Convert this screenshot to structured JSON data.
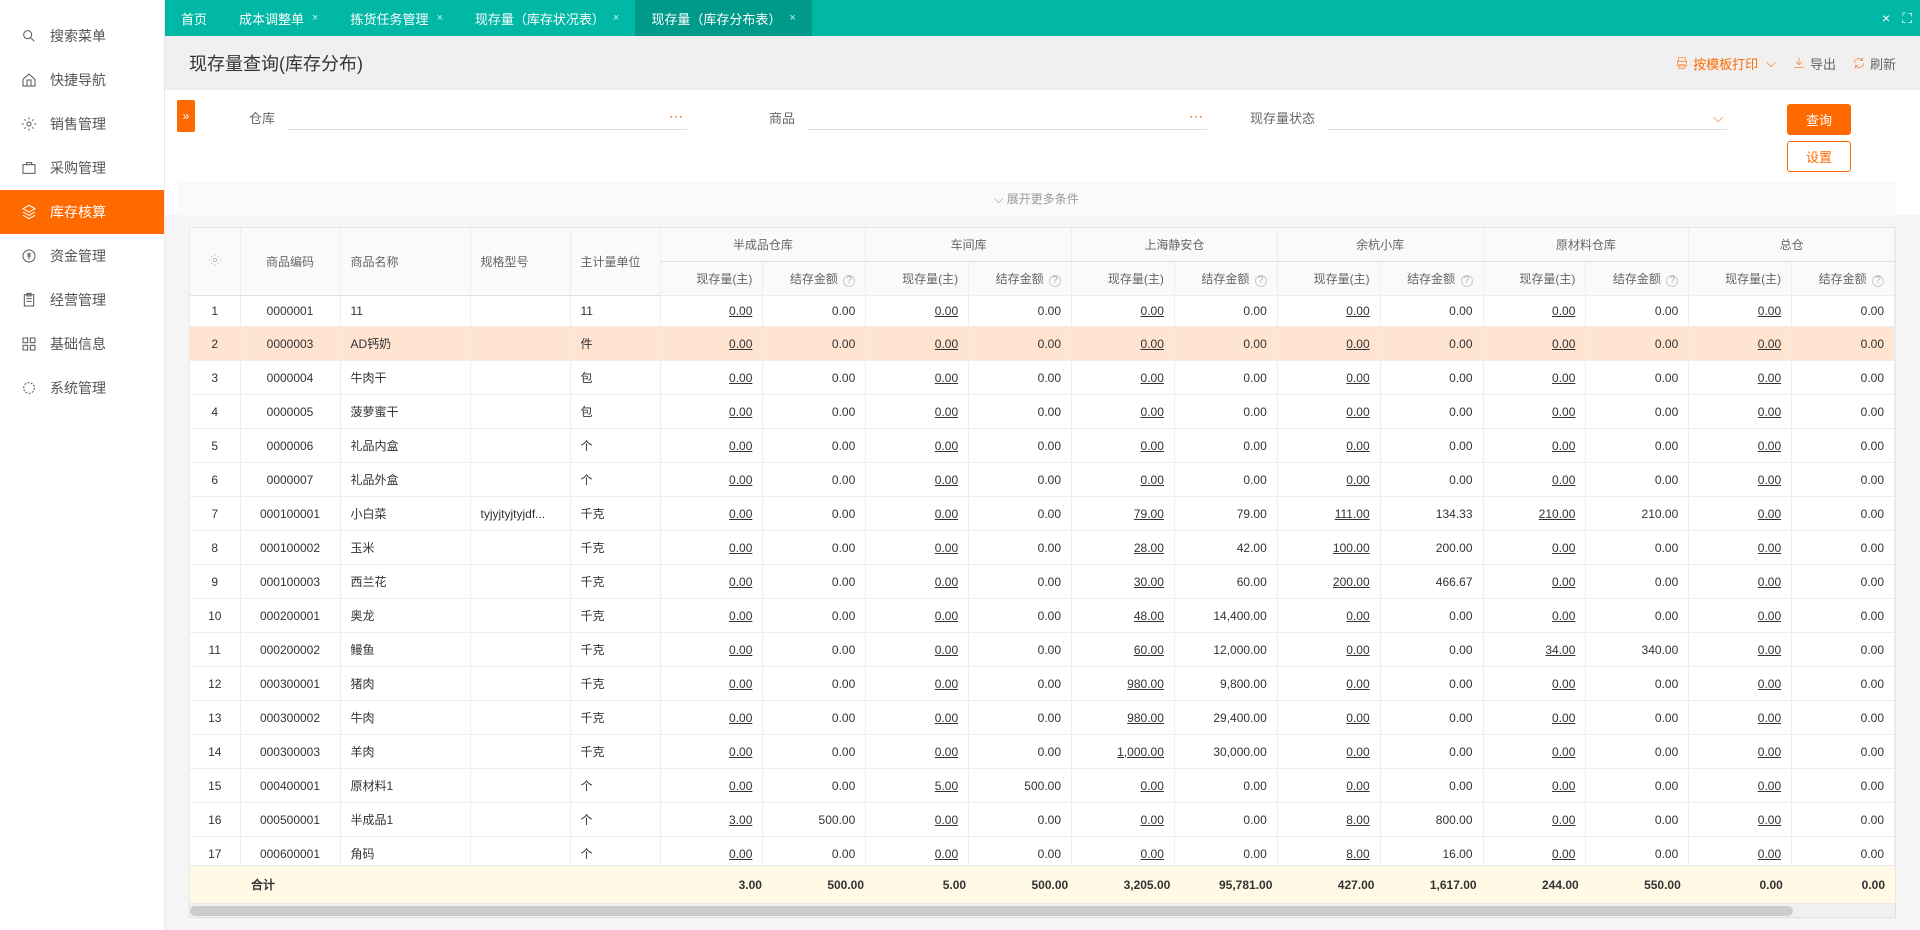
{
  "sidebar": {
    "items": [
      {
        "label": "搜索菜单",
        "icon": "search"
      },
      {
        "label": "快捷导航",
        "icon": "home"
      },
      {
        "label": "销售管理",
        "icon": "gear"
      },
      {
        "label": "采购管理",
        "icon": "briefcase"
      },
      {
        "label": "库存核算",
        "icon": "layers",
        "active": true
      },
      {
        "label": "资金管理",
        "icon": "coin"
      },
      {
        "label": "经营管理",
        "icon": "clipboard"
      },
      {
        "label": "基础信息",
        "icon": "grid"
      },
      {
        "label": "系统管理",
        "icon": "refresh"
      }
    ]
  },
  "tabs": [
    {
      "label": "首页",
      "closable": false
    },
    {
      "label": "成本调整单",
      "closable": true
    },
    {
      "label": "拣货任务管理",
      "closable": true
    },
    {
      "label": "现存量（库存状况表）",
      "closable": true
    },
    {
      "label": "现存量（库存分布表）",
      "closable": true,
      "active": true
    }
  ],
  "page": {
    "title": "现存量查询(库存分布)",
    "actions": {
      "print": "按模板打印",
      "export": "导出",
      "refresh": "刷新"
    }
  },
  "filter": {
    "warehouse_label": "仓库",
    "product_label": "商品",
    "status_label": "现存量状态",
    "query_btn": "查询",
    "settings_btn": "设置",
    "expand_label": "展开更多条件"
  },
  "table": {
    "warehouses": [
      "半成品仓库",
      "车间库",
      "上海静安仓",
      "余杭小库",
      "原材料仓库",
      "总仓"
    ],
    "cols": {
      "code": "商品编码",
      "name": "商品名称",
      "spec": "规格型号",
      "unit": "主计量单位",
      "qty": "现存量(主)",
      "amt": "结存金额"
    },
    "rows": [
      {
        "idx": 1,
        "code": "0000001",
        "name": "11",
        "spec": "",
        "unit": "11",
        "v": [
          "0.00",
          "0.00",
          "0.00",
          "0.00",
          "0.00",
          "0.00",
          "0.00",
          "0.00",
          "0.00",
          "0.00",
          "0.00",
          "0.00"
        ]
      },
      {
        "idx": 2,
        "code": "0000003",
        "name": "AD钙奶",
        "spec": "",
        "unit": "件",
        "highlight": true,
        "v": [
          "0.00",
          "0.00",
          "0.00",
          "0.00",
          "0.00",
          "0.00",
          "0.00",
          "0.00",
          "0.00",
          "0.00",
          "0.00",
          "0.00"
        ]
      },
      {
        "idx": 3,
        "code": "0000004",
        "name": "牛肉干",
        "spec": "",
        "unit": "包",
        "v": [
          "0.00",
          "0.00",
          "0.00",
          "0.00",
          "0.00",
          "0.00",
          "0.00",
          "0.00",
          "0.00",
          "0.00",
          "0.00",
          "0.00"
        ]
      },
      {
        "idx": 4,
        "code": "0000005",
        "name": "菠萝蜜干",
        "spec": "",
        "unit": "包",
        "v": [
          "0.00",
          "0.00",
          "0.00",
          "0.00",
          "0.00",
          "0.00",
          "0.00",
          "0.00",
          "0.00",
          "0.00",
          "0.00",
          "0.00"
        ]
      },
      {
        "idx": 5,
        "code": "0000006",
        "name": "礼品内盒",
        "spec": "",
        "unit": "个",
        "v": [
          "0.00",
          "0.00",
          "0.00",
          "0.00",
          "0.00",
          "0.00",
          "0.00",
          "0.00",
          "0.00",
          "0.00",
          "0.00",
          "0.00"
        ]
      },
      {
        "idx": 6,
        "code": "0000007",
        "name": "礼品外盒",
        "spec": "",
        "unit": "个",
        "v": [
          "0.00",
          "0.00",
          "0.00",
          "0.00",
          "0.00",
          "0.00",
          "0.00",
          "0.00",
          "0.00",
          "0.00",
          "0.00",
          "0.00"
        ]
      },
      {
        "idx": 7,
        "code": "000100001",
        "name": "小白菜",
        "spec": "tyjyjtyjtyjdf...",
        "unit": "千克",
        "v": [
          "0.00",
          "0.00",
          "0.00",
          "0.00",
          "79.00",
          "79.00",
          "111.00",
          "134.33",
          "210.00",
          "210.00",
          "0.00",
          "0.00"
        ]
      },
      {
        "idx": 8,
        "code": "000100002",
        "name": "玉米",
        "spec": "",
        "unit": "千克",
        "v": [
          "0.00",
          "0.00",
          "0.00",
          "0.00",
          "28.00",
          "42.00",
          "100.00",
          "200.00",
          "0.00",
          "0.00",
          "0.00",
          "0.00"
        ]
      },
      {
        "idx": 9,
        "code": "000100003",
        "name": "西兰花",
        "spec": "",
        "unit": "千克",
        "v": [
          "0.00",
          "0.00",
          "0.00",
          "0.00",
          "30.00",
          "60.00",
          "200.00",
          "466.67",
          "0.00",
          "0.00",
          "0.00",
          "0.00"
        ]
      },
      {
        "idx": 10,
        "code": "000200001",
        "name": "奥龙",
        "spec": "",
        "unit": "千克",
        "v": [
          "0.00",
          "0.00",
          "0.00",
          "0.00",
          "48.00",
          "14,400.00",
          "0.00",
          "0.00",
          "0.00",
          "0.00",
          "0.00",
          "0.00"
        ]
      },
      {
        "idx": 11,
        "code": "000200002",
        "name": "鳗鱼",
        "spec": "",
        "unit": "千克",
        "v": [
          "0.00",
          "0.00",
          "0.00",
          "0.00",
          "60.00",
          "12,000.00",
          "0.00",
          "0.00",
          "34.00",
          "340.00",
          "0.00",
          "0.00"
        ]
      },
      {
        "idx": 12,
        "code": "000300001",
        "name": "猪肉",
        "spec": "",
        "unit": "千克",
        "v": [
          "0.00",
          "0.00",
          "0.00",
          "0.00",
          "980.00",
          "9,800.00",
          "0.00",
          "0.00",
          "0.00",
          "0.00",
          "0.00",
          "0.00"
        ]
      },
      {
        "idx": 13,
        "code": "000300002",
        "name": "牛肉",
        "spec": "",
        "unit": "千克",
        "v": [
          "0.00",
          "0.00",
          "0.00",
          "0.00",
          "980.00",
          "29,400.00",
          "0.00",
          "0.00",
          "0.00",
          "0.00",
          "0.00",
          "0.00"
        ]
      },
      {
        "idx": 14,
        "code": "000300003",
        "name": "羊肉",
        "spec": "",
        "unit": "千克",
        "v": [
          "0.00",
          "0.00",
          "0.00",
          "0.00",
          "1,000.00",
          "30,000.00",
          "0.00",
          "0.00",
          "0.00",
          "0.00",
          "0.00",
          "0.00"
        ]
      },
      {
        "idx": 15,
        "code": "000400001",
        "name": "原材料1",
        "spec": "",
        "unit": "个",
        "v": [
          "0.00",
          "0.00",
          "5.00",
          "500.00",
          "0.00",
          "0.00",
          "0.00",
          "0.00",
          "0.00",
          "0.00",
          "0.00",
          "0.00"
        ]
      },
      {
        "idx": 16,
        "code": "000500001",
        "name": "半成品1",
        "spec": "",
        "unit": "个",
        "v": [
          "3.00",
          "500.00",
          "0.00",
          "0.00",
          "0.00",
          "0.00",
          "8.00",
          "800.00",
          "0.00",
          "0.00",
          "0.00",
          "0.00"
        ]
      },
      {
        "idx": 17,
        "code": "000600001",
        "name": "角码",
        "spec": "",
        "unit": "个",
        "v": [
          "0.00",
          "0.00",
          "0.00",
          "0.00",
          "0.00",
          "0.00",
          "8.00",
          "16.00",
          "0.00",
          "0.00",
          "0.00",
          "0.00"
        ]
      }
    ],
    "total": {
      "label": "合计",
      "v": [
        "3.00",
        "500.00",
        "5.00",
        "500.00",
        "3,205.00",
        "95,781.00",
        "427.00",
        "1,617.00",
        "244.00",
        "550.00",
        "0.00",
        "0.00"
      ]
    }
  }
}
